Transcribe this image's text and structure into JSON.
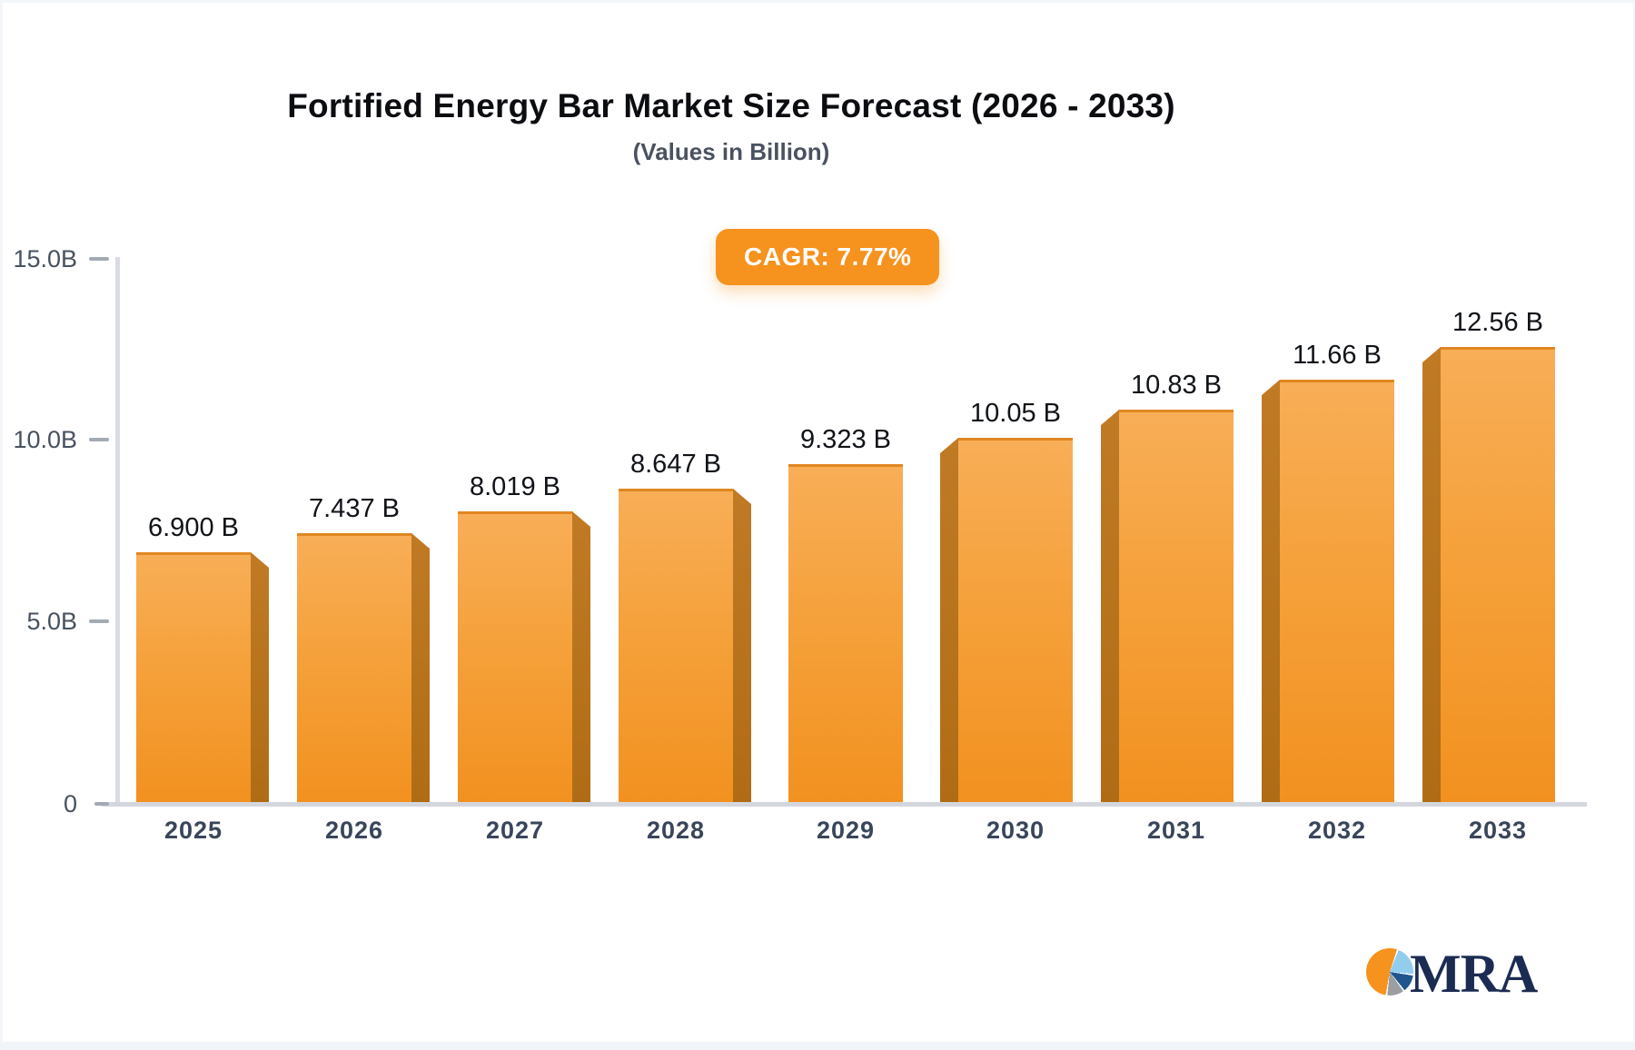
{
  "header": {
    "title": "Fortified Energy Bar Market Size Forecast (2026 - 2033)",
    "subtitle": "(Values in Billion)"
  },
  "badge": {
    "label": "CAGR: 7.77%",
    "bg_color": "#f6921e",
    "text_color": "#ffffff"
  },
  "y_axis": {
    "ticks": [
      "15.0B",
      "10.0B",
      "5.0B",
      "0"
    ]
  },
  "logo": {
    "text": "MRA",
    "icon": "pie-chart-icon",
    "pie_colors": [
      "#f6921e",
      "#93cdee",
      "#21568c",
      "#9b9ea3"
    ],
    "text_color": "#1b2b52"
  },
  "chart_data": {
    "type": "bar",
    "title": "Fortified Energy Bar Market Size Forecast (2026 - 2033)",
    "subtitle": "(Values in Billion)",
    "annotation": "CAGR: 7.77%",
    "categories": [
      "2025",
      "2026",
      "2027",
      "2028",
      "2029",
      "2030",
      "2031",
      "2032",
      "2033"
    ],
    "values": [
      6.9,
      7.437,
      8.019,
      8.647,
      9.323,
      10.05,
      10.83,
      11.66,
      12.56
    ],
    "value_labels": [
      "6.900 B",
      "7.437 B",
      "8.019 B",
      "8.647 B",
      "9.323 B",
      "10.05 B",
      "10.83 B",
      "11.66 B",
      "12.56 B"
    ],
    "unit": "Billion",
    "ylim": [
      0,
      15
    ],
    "ytick_labels": [
      "0",
      "5.0B",
      "10.0B",
      "15.0B"
    ],
    "grid": false,
    "legend": false,
    "bar_color_top": "#f8ae57",
    "bar_color_bottom": "#f29120",
    "bar_side_color": "#b3701a",
    "bar_3d_perspective": "side strips face away from center bar 2029"
  }
}
